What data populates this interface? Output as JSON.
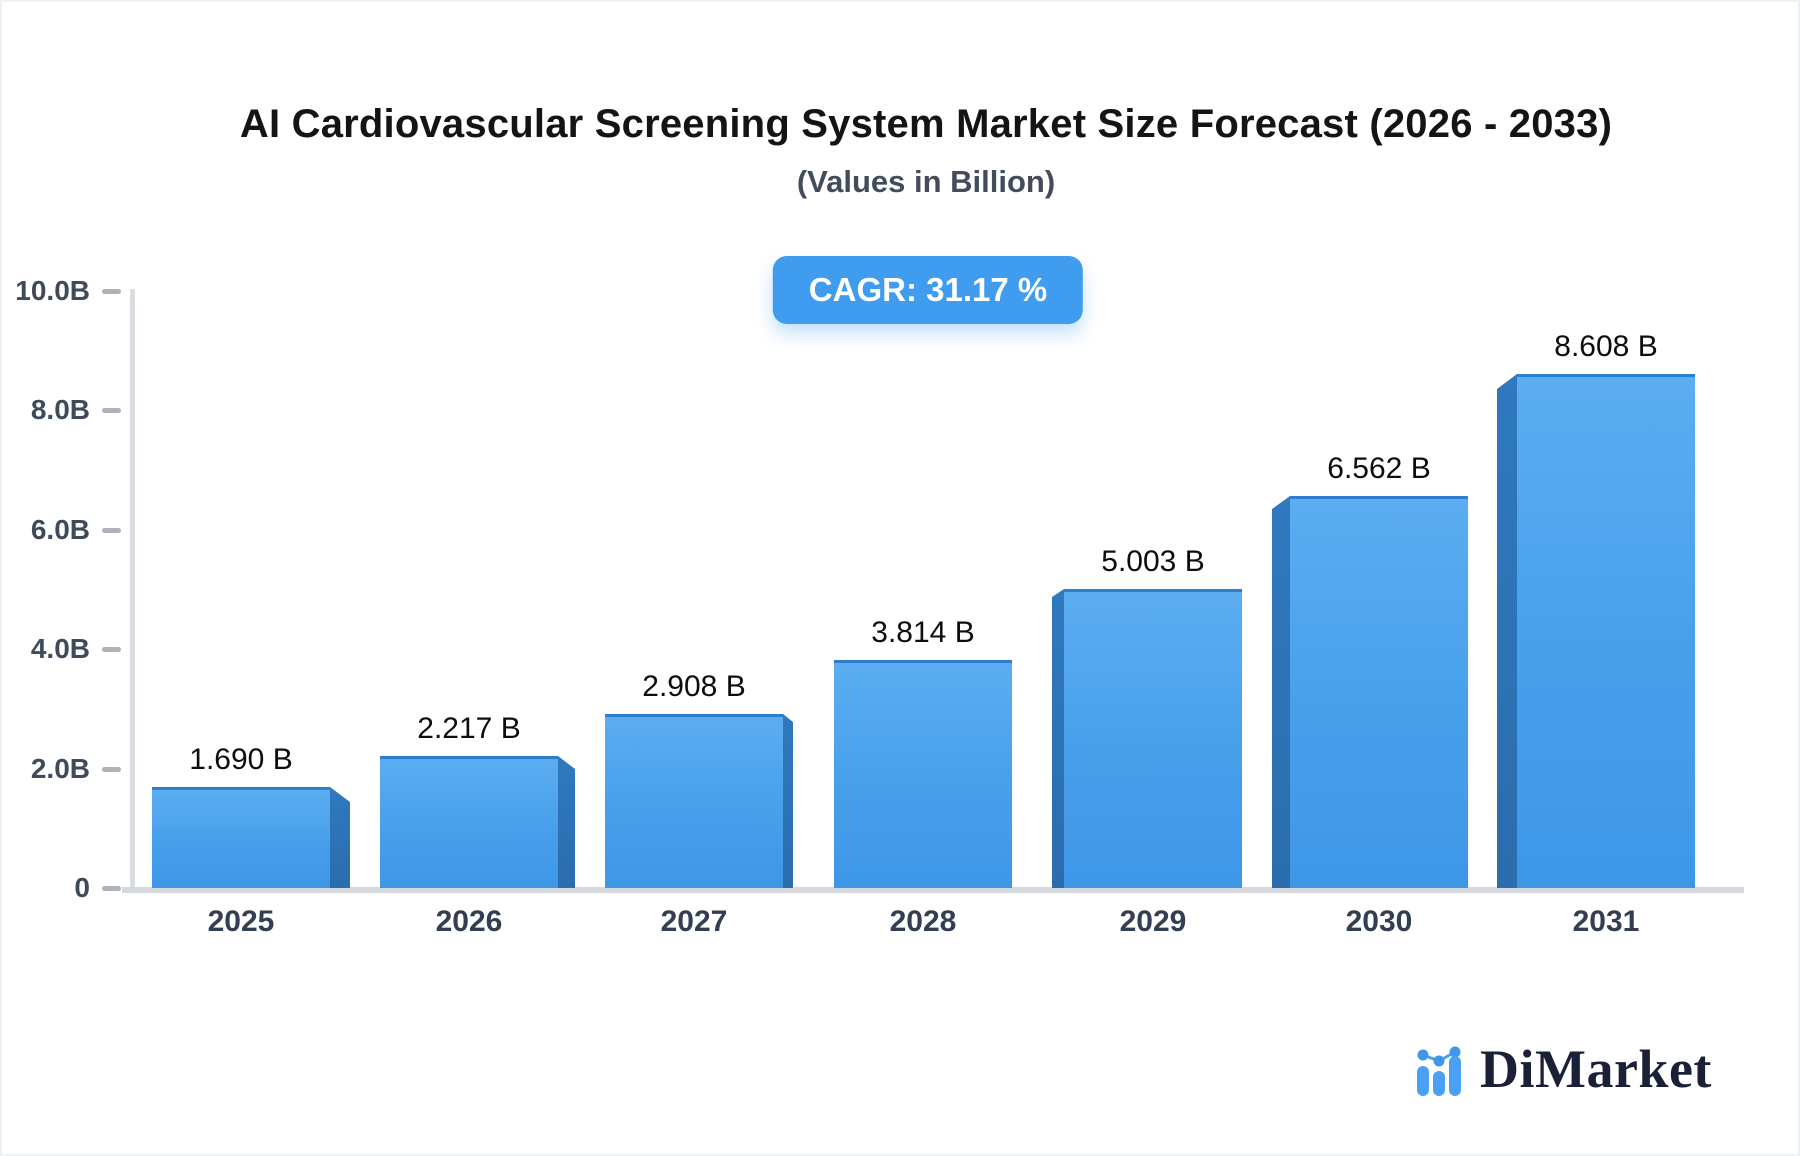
{
  "chart_data": {
    "type": "bar",
    "title": "AI Cardiovascular Screening System Market Size Forecast (2026 - 2033)",
    "subtitle": "(Values in Billion)",
    "cagr_badge": "CAGR: 31.17 %",
    "categories": [
      "2025",
      "2026",
      "2027",
      "2028",
      "2029",
      "2030",
      "2031"
    ],
    "values": [
      1.69,
      2.217,
      2.908,
      3.814,
      5.003,
      6.562,
      8.608
    ],
    "value_labels": [
      "1.690 B",
      "2.217 B",
      "2.908 B",
      "3.814 B",
      "5.003 B",
      "6.562 B",
      "8.608 B"
    ],
    "ylim": [
      0,
      10
    ],
    "yticks": [
      {
        "value": 10,
        "label": "10.0B"
      },
      {
        "value": 8,
        "label": "8.0B"
      },
      {
        "value": 6,
        "label": "6.0B"
      },
      {
        "value": 4,
        "label": "4.0B"
      },
      {
        "value": 2,
        "label": "2.0B"
      },
      {
        "value": 0,
        "label": "0"
      }
    ],
    "grid": false,
    "legend": false,
    "colors": {
      "bar_face": "#4aa2ec",
      "bar_side": "#2e74b8",
      "badge_background": "#3f9cee",
      "badge_text": "#ffffff",
      "axis": "#d5d8dc",
      "tick_text": "#3f4a5a",
      "value_text": "#0d0d0d"
    }
  },
  "branding": {
    "logo_text": "DiMarket",
    "logo_color": "#1a2137",
    "logo_icon_color": "#4aa0f2"
  }
}
